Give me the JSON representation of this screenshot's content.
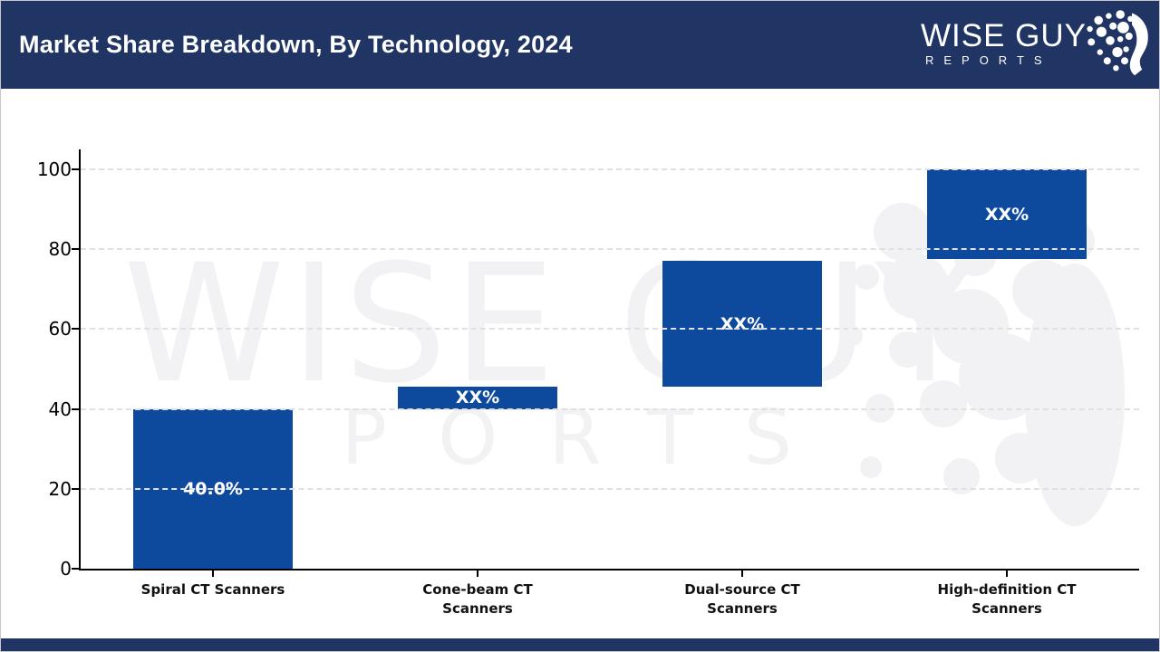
{
  "header": {
    "title": "Market Share Breakdown, By Technology, 2024",
    "logo": {
      "wordmark": "WISE GUY",
      "subtext": "REPORTS"
    }
  },
  "watermark": {
    "wordmark": "WISE GUY",
    "subtext": "REPORTS"
  },
  "colors": {
    "header_bg": "#203564",
    "footer_bg": "#203564",
    "bar": "#0d4a9e",
    "bar_label": "#ffffff",
    "axis": "#000000",
    "grid": "#e0e0e0",
    "watermark": "#f2f2f4",
    "title_text": "#ffffff"
  },
  "chart_data": {
    "type": "bar",
    "subtype": "waterfall",
    "title": "Market Share Breakdown, By Technology, 2024",
    "categories": [
      "Spiral CT Scanners",
      "Cone-beam CT Scanners",
      "Dual-source CT Scanners",
      "High-definition CT Scanners"
    ],
    "category_lines": [
      [
        "Spiral CT Scanners"
      ],
      [
        "Cone-beam CT",
        "Scanners"
      ],
      [
        "Dual-source CT",
        "Scanners"
      ],
      [
        "High-definition CT",
        "Scanners"
      ]
    ],
    "bars": [
      {
        "category": "Spiral CT Scanners",
        "start": 0,
        "end": 40,
        "label": "40.0%"
      },
      {
        "category": "Cone-beam CT Scanners",
        "start": 40,
        "end": 45.5,
        "label": "XX%"
      },
      {
        "category": "Dual-source CT Scanners",
        "start": 45.5,
        "end": 77,
        "label": "XX%"
      },
      {
        "category": "High-definition CT Scanners",
        "start": 77.5,
        "end": 100,
        "label": "XX%"
      }
    ],
    "xlabel": "",
    "ylabel": "",
    "ylim": [
      0,
      105
    ],
    "yticks": [
      0,
      20,
      40,
      60,
      80,
      100
    ],
    "grid": "horizontal-dashed",
    "legend": "none",
    "bar_color": "#0d4a9e",
    "bar_label_color": "#ffffff"
  }
}
